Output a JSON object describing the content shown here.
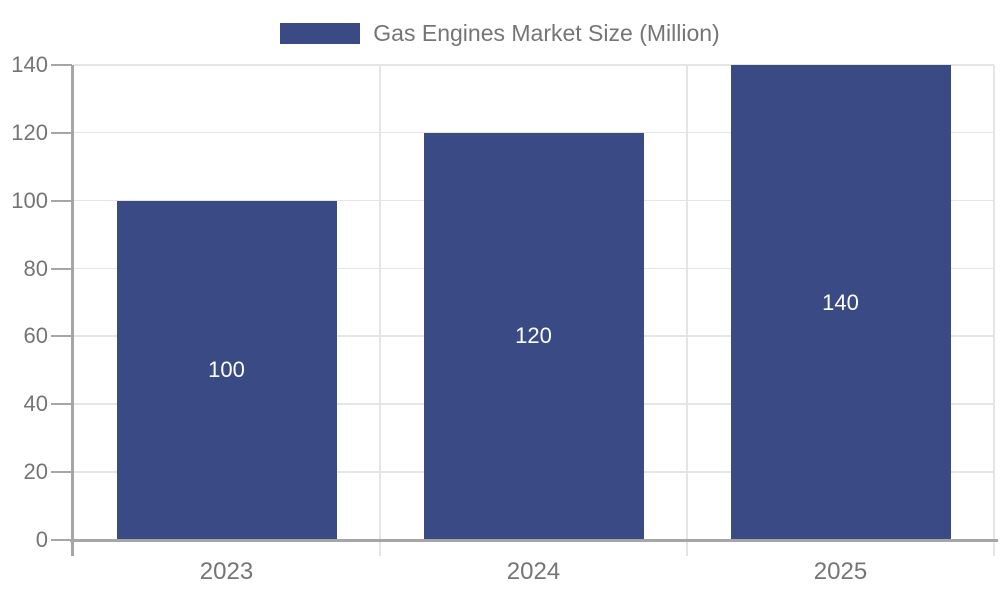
{
  "legend": {
    "label": "Gas Engines Market Size (Million)"
  },
  "chart_data": {
    "type": "bar",
    "title": "Gas Engines Market Size (Million)",
    "categories": [
      "2023",
      "2024",
      "2025"
    ],
    "values": [
      100,
      120,
      140
    ],
    "bar_labels": [
      "100",
      "120",
      "140"
    ],
    "xlabel": "",
    "ylabel": "",
    "ylim": [
      0,
      140
    ],
    "yticks": [
      0,
      20,
      40,
      60,
      80,
      100,
      120,
      140
    ],
    "legend_entries": [
      "Gas Engines Market Size (Million)"
    ],
    "legend_position": "top-center",
    "grid": true,
    "colors": {
      "bar": "#3A4A85",
      "axis": "#A6A6A6",
      "grid": "#E5E5E5",
      "tick_label": "#757575",
      "legend_text": "#757575",
      "data_label": "#FFFFFF",
      "background": "#FFFFFF"
    }
  }
}
